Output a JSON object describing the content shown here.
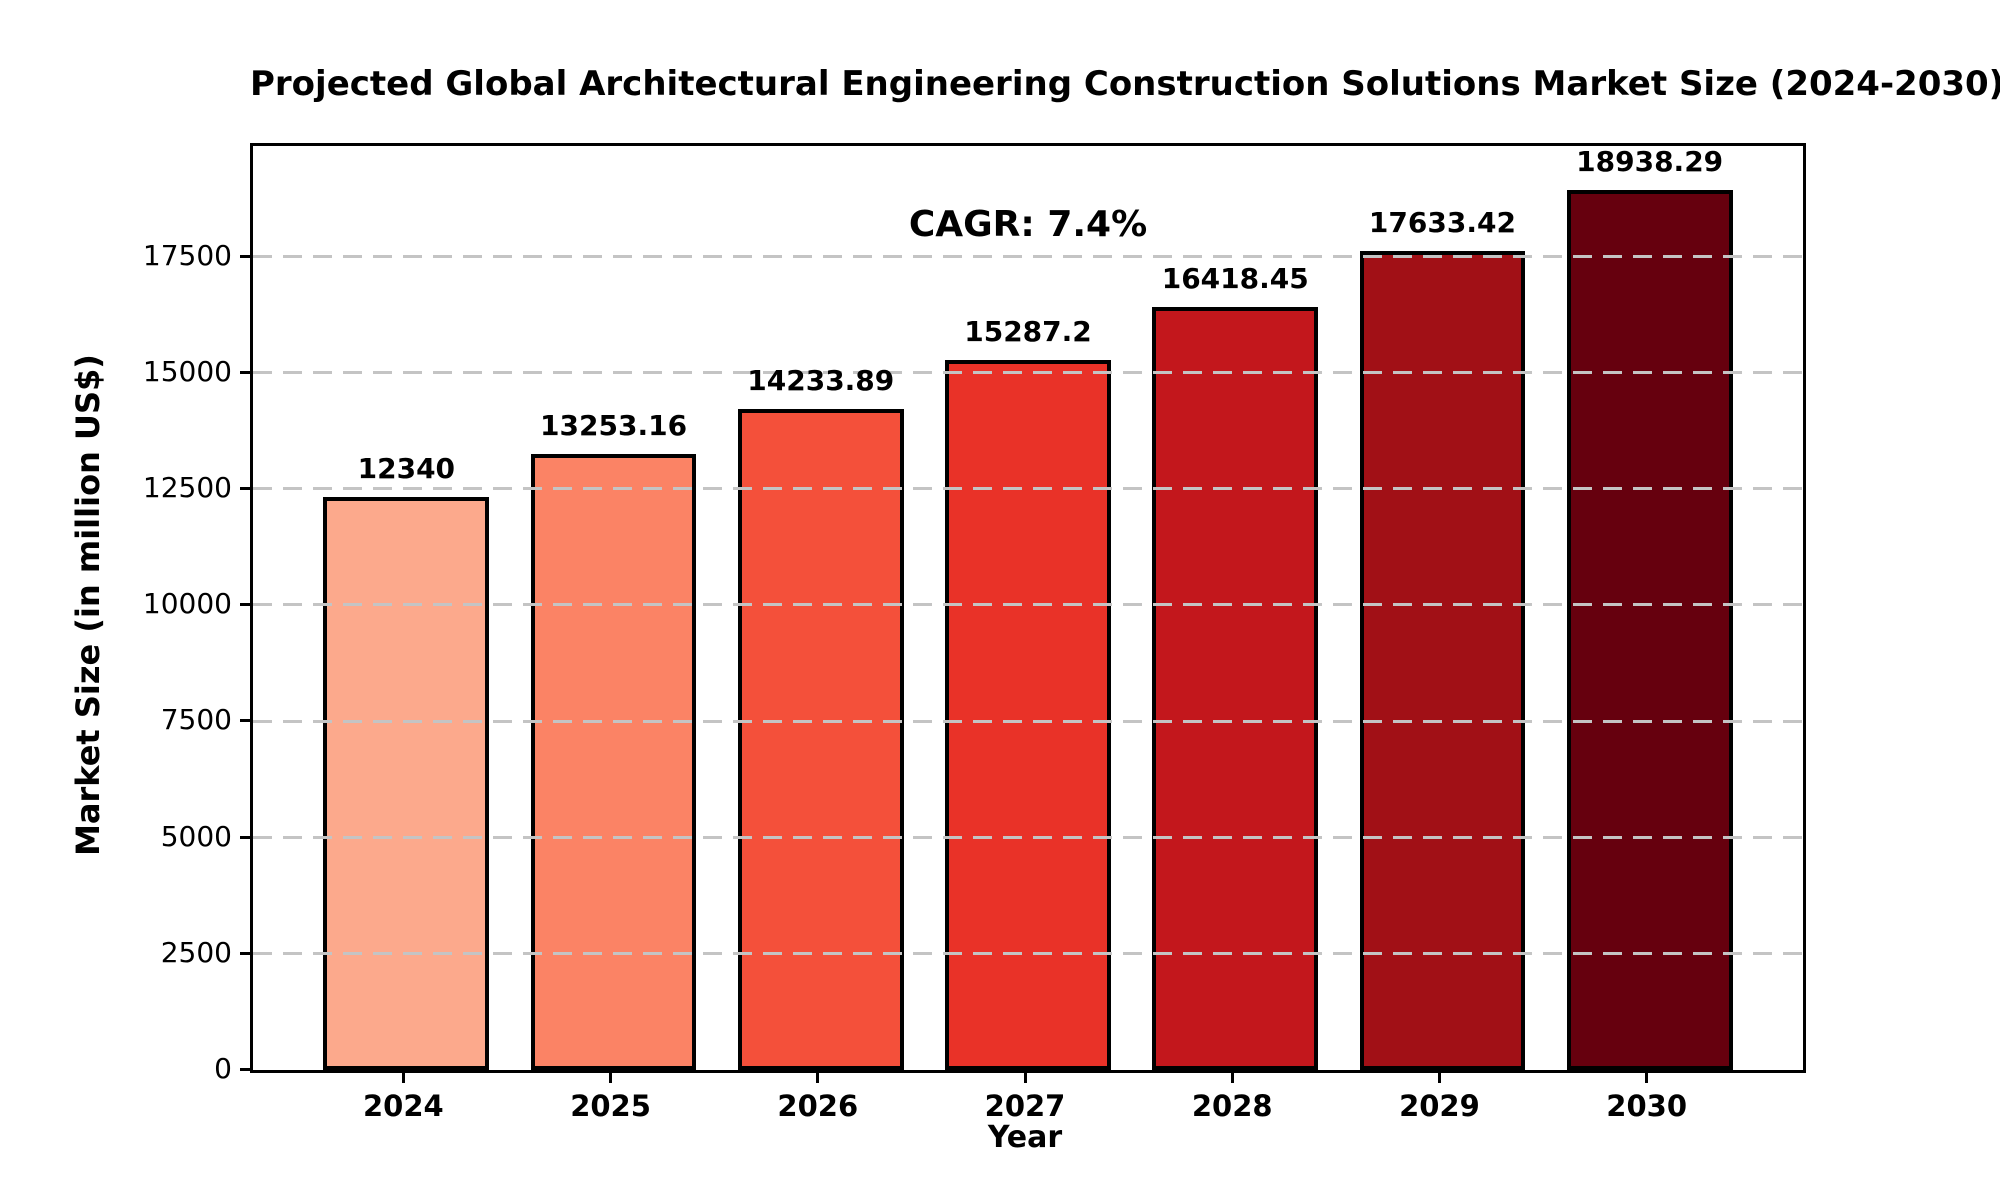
{
  "chart_data": {
    "type": "bar",
    "title": "Projected Global Architectural Engineering Construction Solutions Market Size (2024-2030)",
    "xlabel": "Year",
    "ylabel": "Market Size (in million US$)",
    "categories": [
      "2024",
      "2025",
      "2026",
      "2027",
      "2028",
      "2029",
      "2030"
    ],
    "values": [
      12340,
      13253.16,
      14233.89,
      15287.2,
      16418.45,
      17633.42,
      18938.29
    ],
    "bar_labels": [
      "12340",
      "13253.16",
      "14233.89",
      "15287.2",
      "16418.45",
      "17633.42",
      "18938.29"
    ],
    "annotation": "CAGR: 7.4%",
    "ylim": [
      0,
      19885
    ],
    "yticks": [
      0,
      2500,
      5000,
      7500,
      10000,
      12500,
      15000,
      17500
    ],
    "grid": "horizontal dashed, drawn above bars",
    "legend": "none",
    "bar_colors": [
      "#FCA98C",
      "#FB8365",
      "#F4503A",
      "#E93228",
      "#C3171C",
      "#A11016",
      "#66000E"
    ],
    "bar_edge_color": "#000000",
    "grid_color": "#C4C4C4",
    "axis_color": "#000000",
    "background_color": "#FFFFFF"
  }
}
